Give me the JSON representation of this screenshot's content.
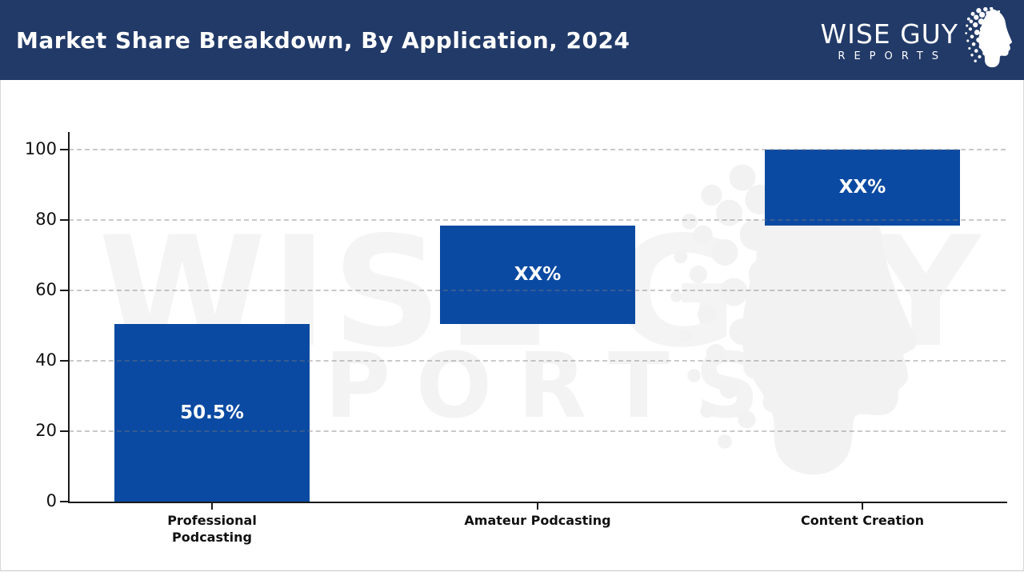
{
  "header": {
    "title": "Market Share Breakdown, By Application, 2024",
    "logo": {
      "line1": "WISE GUY",
      "line2": "REPORTS"
    }
  },
  "watermark": {
    "line1": "WISE GUY",
    "line2": "REPORTS"
  },
  "chart_data": {
    "type": "bar",
    "subtype": "floating-stacked-segments",
    "title": "Market Share Breakdown, By Application, 2024",
    "categories": [
      "Professional\nPodcasting",
      "Amateur Podcasting",
      "Content Creation"
    ],
    "bars": [
      {
        "category": "Professional Podcasting",
        "from": 0,
        "to": 50.5,
        "label": "50.5%"
      },
      {
        "category": "Amateur Podcasting",
        "from": 50.5,
        "to": 78.5,
        "label": "XX%"
      },
      {
        "category": "Content Creation",
        "from": 78.5,
        "to": 100,
        "label": "XX%"
      }
    ],
    "xlabel": "",
    "ylabel": "",
    "yticks": [
      0,
      20,
      40,
      60,
      80,
      100
    ],
    "ylim": [
      0,
      105
    ],
    "grid": "horizontal-dashed",
    "legend": "none",
    "bar_color": "#0B4AA2",
    "bar_label_color": "#ffffff"
  },
  "colors": {
    "header_bg": "#223A68",
    "bar": "#0B4AA2",
    "axis": "#1a1a1a",
    "grid_dash": "#bdbdbd",
    "watermark": "#f3f3f3"
  }
}
